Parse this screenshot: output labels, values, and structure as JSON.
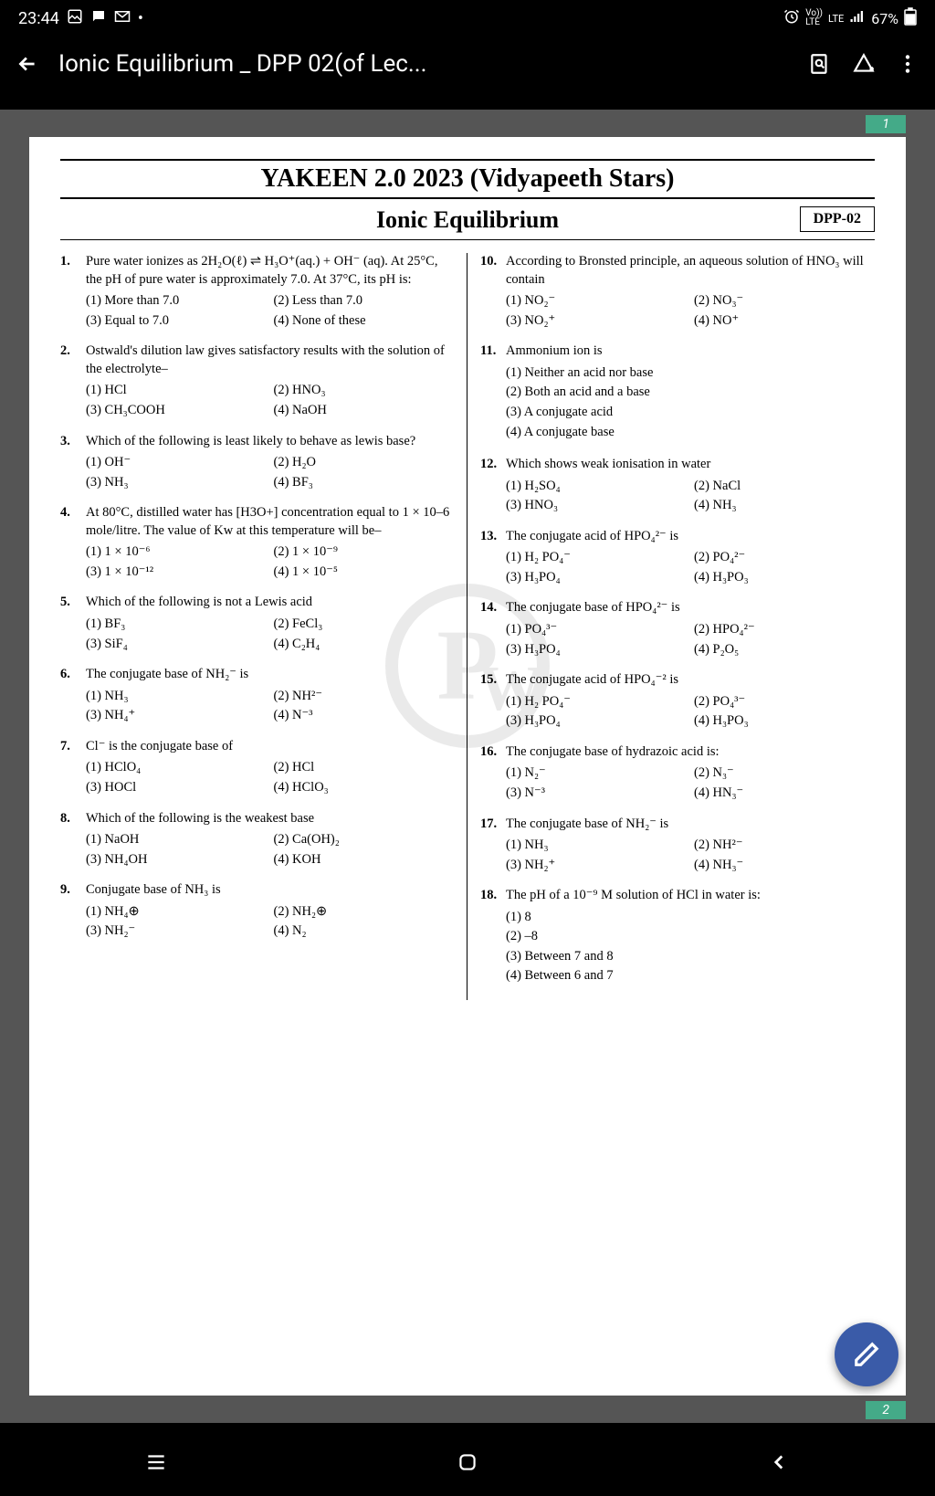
{
  "status": {
    "time": "23:44",
    "battery": "67%",
    "net": "LTE"
  },
  "appbar": {
    "title": "Ionic Equilibrium _ DPP 02(of Lec..."
  },
  "doc": {
    "pagenum": "1",
    "pagenum2": "2",
    "header": "YAKEEN 2.0 2023 (Vidyapeeth Stars)",
    "subheader": "Ionic Equilibrium",
    "dpp": "DPP-02"
  },
  "left": [
    {
      "n": "1.",
      "t": "Pure water ionizes as 2H₂O(ℓ) ⇌ H₃O⁺(aq.) + OH⁻ (aq). At 25°C, the pH of pure water is approximately 7.0. At 37°C, its pH is:",
      "o": [
        "(1)  More than 7.0",
        "(2)  Less than 7.0",
        "(3)  Equal to 7.0",
        "(4)  None of these"
      ]
    },
    {
      "n": "2.",
      "t": "Ostwald's dilution law gives satisfactory results with the solution of the electrolyte–",
      "o": [
        "(1)  HCl",
        "(2)  HNO₃",
        "(3)  CH₃COOH",
        "(4)  NaOH"
      ]
    },
    {
      "n": "3.",
      "t": "Which of the following is least likely to behave as lewis base?",
      "o": [
        "(1)  OH⁻",
        "(2)  H₂O",
        "(3)  NH₃",
        "(4)  BF₃"
      ]
    },
    {
      "n": "4.",
      "t": "At 80°C, distilled water has [H3O+] concentration equal to 1 × 10–6 mole/litre. The value of Kw at this temperature will be–",
      "o": [
        "(1)  1 × 10⁻⁶",
        "(2)  1 × 10⁻⁹",
        "(3)  1 × 10⁻¹²",
        "(4)  1 × 10⁻⁵"
      ]
    },
    {
      "n": "5.",
      "t": "Which of the following is not a Lewis acid",
      "o": [
        "(1)  BF₃",
        "(2)  FeCl₃",
        "(3)  SiF₄",
        "(4)  C₂H₄"
      ]
    },
    {
      "n": "6.",
      "t": "The conjugate base of NH₂⁻ is",
      "o": [
        "(1)  NH₃",
        "(2) NH²⁻",
        "(3)  NH₄⁺",
        "(4)  N⁻³"
      ]
    },
    {
      "n": "7.",
      "t": "Cl⁻ is the conjugate base of",
      "o": [
        "(1)  HClO₄",
        "(2)  HCl",
        "(3)  HOCl",
        "(4)  HClO₃"
      ]
    },
    {
      "n": "8.",
      "t": "Which of the following is the weakest base",
      "o": [
        "(1)  NaOH",
        "(2)  Ca(OH)₂",
        "(3)  NH₄OH",
        "(4)  KOH"
      ]
    },
    {
      "n": "9.",
      "t": "Conjugate base of NH₃ is",
      "o": [
        "(1)  NH₄⊕",
        "(2)  NH₂⊕",
        "(3)  NH₂⁻",
        "(4)  N₂"
      ]
    }
  ],
  "right": [
    {
      "n": "10.",
      "t": "According to Bronsted principle, an aqueous solution of HNO₃ will contain",
      "o": [
        "(1)  NO₂⁻",
        "(2)  NO₃⁻",
        "(3)  NO₂⁺",
        "(4)  NO⁺"
      ]
    },
    {
      "n": "11.",
      "t": "Ammonium ion is",
      "single": true,
      "o": [
        "(1)  Neither an acid nor base",
        "(2)  Both an acid and a base",
        "(3)  A conjugate acid",
        "(4)  A conjugate base"
      ]
    },
    {
      "n": "12.",
      "t": "Which shows weak ionisation in water",
      "o": [
        "(1)  H₂SO₄",
        "(2)  NaCl",
        "(3)  HNO₃",
        "(4)  NH₃"
      ]
    },
    {
      "n": "13.",
      "t": "The conjugate acid of HPO₄²⁻ is",
      "o": [
        "(1)  H₂ PO₄⁻",
        "(2)  PO₄²⁻",
        "(3)  H₃PO₄",
        "(4)  H₃PO₃"
      ]
    },
    {
      "n": "14.",
      "t": "The conjugate base of HPO₄²⁻ is",
      "o": [
        "(1)  PO₄³⁻",
        "(2)  HPO₄²⁻",
        "(3)  H₃PO₄",
        "(4)  P₂O₅"
      ]
    },
    {
      "n": "15.",
      "t": "The conjugate acid of HPO₄⁻² is",
      "o": [
        "(1)  H₂ PO₄⁻",
        "(2)  PO₄³⁻",
        "(3)  H₃PO₄",
        "(4)  H₃PO₃"
      ]
    },
    {
      "n": "16.",
      "t": "The conjugate base of hydrazoic acid is:",
      "o": [
        "(1)  N₂⁻",
        "(2)  N₃⁻",
        "(3)  N⁻³",
        "(4)  HN₃⁻"
      ]
    },
    {
      "n": "17.",
      "t": "The conjugate base of NH₂⁻ is",
      "o": [
        "(1)  NH₃",
        "(2)  NH²⁻",
        "(3)  NH₂⁺",
        "(4)  NH₃⁻"
      ]
    },
    {
      "n": "18.",
      "t": "The pH of a 10⁻⁹ M solution of HCl in water is:",
      "single": true,
      "o": [
        "(1)  8",
        "(2)  –8",
        "(3)  Between 7 and 8",
        "(4)  Between 6 and 7"
      ]
    }
  ]
}
